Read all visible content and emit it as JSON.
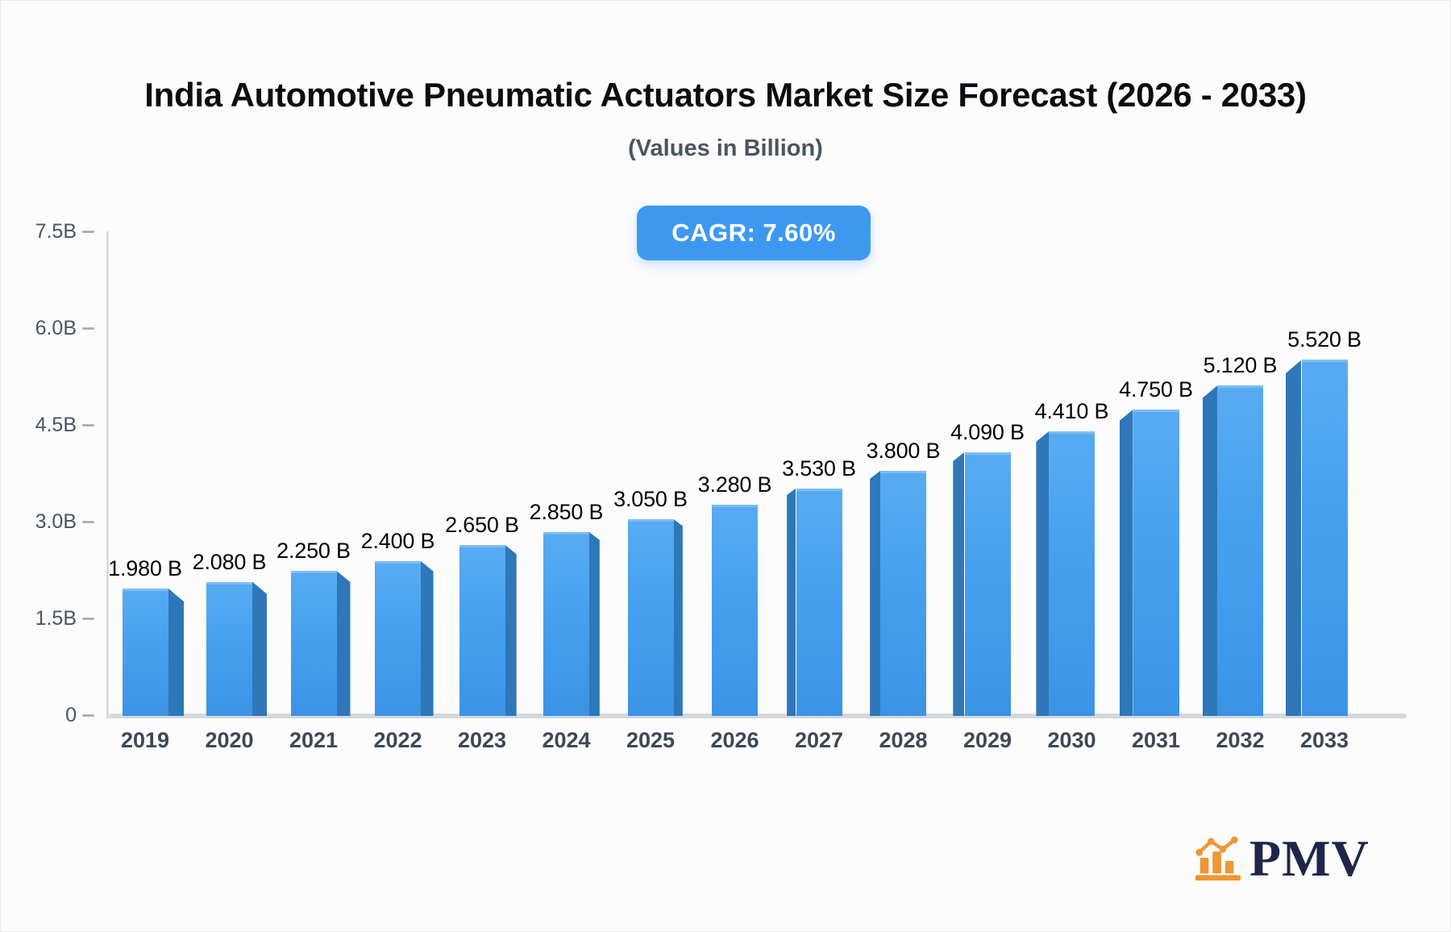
{
  "chart_data": {
    "type": "bar",
    "title": "India Automotive Pneumatic Actuators Market Size Forecast (2026 - 2033)",
    "subtitle": "(Values in Billion)",
    "annotation_badge": "CAGR: 7.60%",
    "categories": [
      "2019",
      "2020",
      "2021",
      "2022",
      "2023",
      "2024",
      "2025",
      "2026",
      "2027",
      "2028",
      "2029",
      "2030",
      "2031",
      "2032",
      "2033"
    ],
    "values": [
      1.98,
      2.08,
      2.25,
      2.4,
      2.65,
      2.85,
      3.05,
      3.28,
      3.53,
      3.8,
      4.09,
      4.41,
      4.75,
      5.12,
      5.52
    ],
    "value_labels": [
      "1.980 B",
      "2.080 B",
      "2.250 B",
      "2.400 B",
      "2.650 B",
      "2.850 B",
      "3.050 B",
      "3.280 B",
      "3.530 B",
      "3.800 B",
      "4.090 B",
      "4.410 B",
      "4.750 B",
      "5.120 B",
      "5.520 B"
    ],
    "yticks": [
      {
        "label": "7.5B",
        "value": 7.5
      },
      {
        "label": "6.0B",
        "value": 6.0
      },
      {
        "label": "4.5B",
        "value": 4.5
      },
      {
        "label": "3.0B",
        "value": 3.0
      },
      {
        "label": "1.5B",
        "value": 1.5
      },
      {
        "label": "0",
        "value": 0
      }
    ],
    "ylim": [
      0,
      7.5
    ],
    "xlabel": "",
    "ylabel": "",
    "grid": false,
    "legend": null,
    "colors": {
      "bar_front_top": "#58abf2",
      "bar_front_bottom": "#3b93e6",
      "bar_side": "#2e77b9",
      "badge_background": "#3d99f0",
      "badge_text": "#ffffff",
      "axis_line": "#d5d8de"
    }
  },
  "logo": {
    "text": "PMV",
    "icon": "bar-chart-logo-icon",
    "icon_color": "#ef9733",
    "text_color": "#1d2648"
  }
}
